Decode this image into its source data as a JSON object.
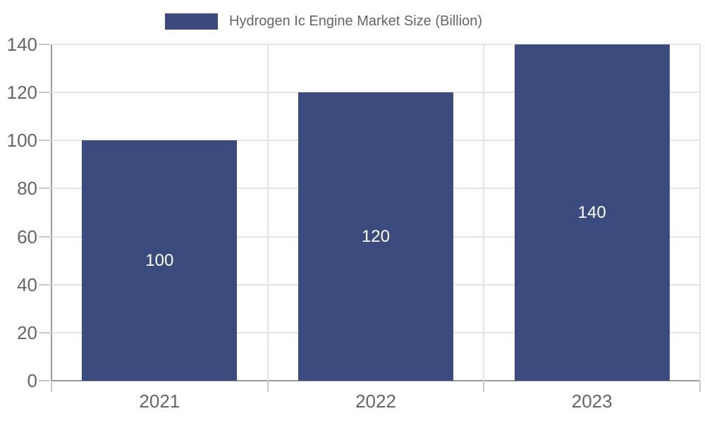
{
  "legend": {
    "label": "Hydrogen Ic Engine Market Size (Billion)",
    "swatch_color": "#3b4b7e"
  },
  "chart_data": {
    "type": "bar",
    "title": "Hydrogen Ic Engine Market Size (Billion)",
    "categories": [
      "2021",
      "2022",
      "2023"
    ],
    "values": [
      100,
      120,
      140
    ],
    "bar_labels": [
      "100",
      "120",
      "140"
    ],
    "xlabel": "",
    "ylabel": "",
    "ylim": [
      0,
      140
    ],
    "yticks": [
      0,
      20,
      40,
      60,
      80,
      100,
      120,
      140
    ],
    "grid": true,
    "legend_position": "top-center",
    "bar_width_frac": 0.717,
    "colors": {
      "bar": "#3b4b7e",
      "bar_label": "#ffffff",
      "axis_line": "#9a9a9a",
      "gridline": "#e4e4e4",
      "tick": "#c9c9c9",
      "text": "#666666",
      "bg": "#ffffff"
    }
  }
}
